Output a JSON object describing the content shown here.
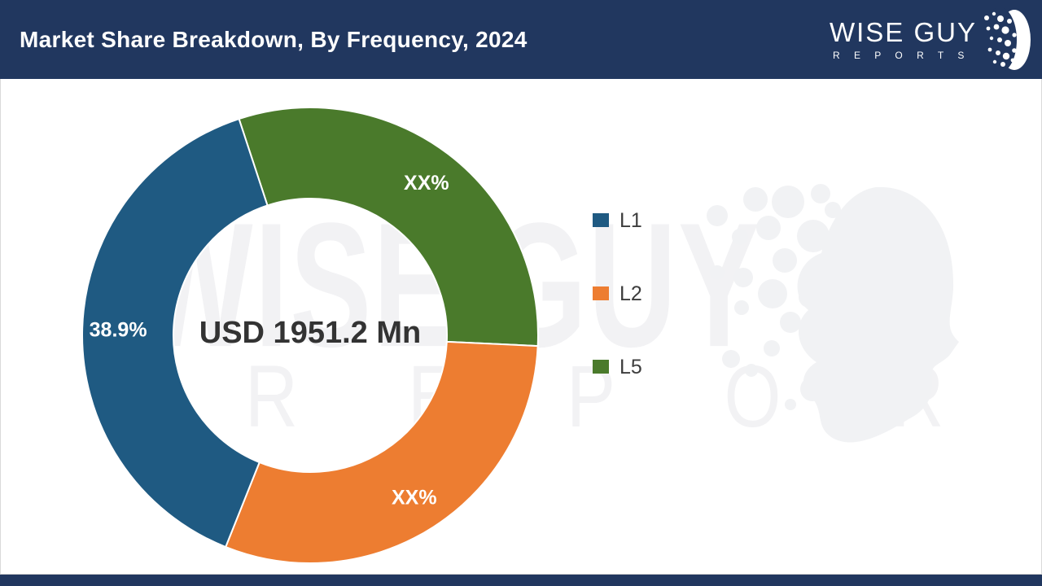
{
  "header": {
    "title": "Market Share Breakdown, By Frequency, 2024",
    "bg_color": "#21375f",
    "logo_line1": "WISE GUY",
    "logo_line2": "R E P O R T S"
  },
  "watermark": {
    "line1": "WISE GUY",
    "line2": "R E P O R T S"
  },
  "chart_data": {
    "type": "pie",
    "subtype": "donut",
    "title": "Market Share Breakdown, By Frequency, 2024",
    "center_label": "USD 1951.2 Mn",
    "start_angle_deg": -18.2,
    "donut_hole_ratio": 0.6,
    "legend_position": "right",
    "segments": [
      {
        "name": "L5",
        "display_label": "XX%",
        "value_pct": 30.8,
        "color": "#4a7a2b"
      },
      {
        "name": "L2",
        "display_label": "XX%",
        "value_pct": 30.3,
        "color": "#ed7d31"
      },
      {
        "name": "L1",
        "display_label": "38.9%",
        "value_pct": 38.9,
        "color": "#1f5a82"
      }
    ],
    "legend": [
      {
        "label": "L1",
        "color": "#1f5a82"
      },
      {
        "label": "L2",
        "color": "#ed7d31"
      },
      {
        "label": "L5",
        "color": "#4a7a2b"
      }
    ]
  },
  "footer": {
    "bg_color": "#21375f"
  }
}
